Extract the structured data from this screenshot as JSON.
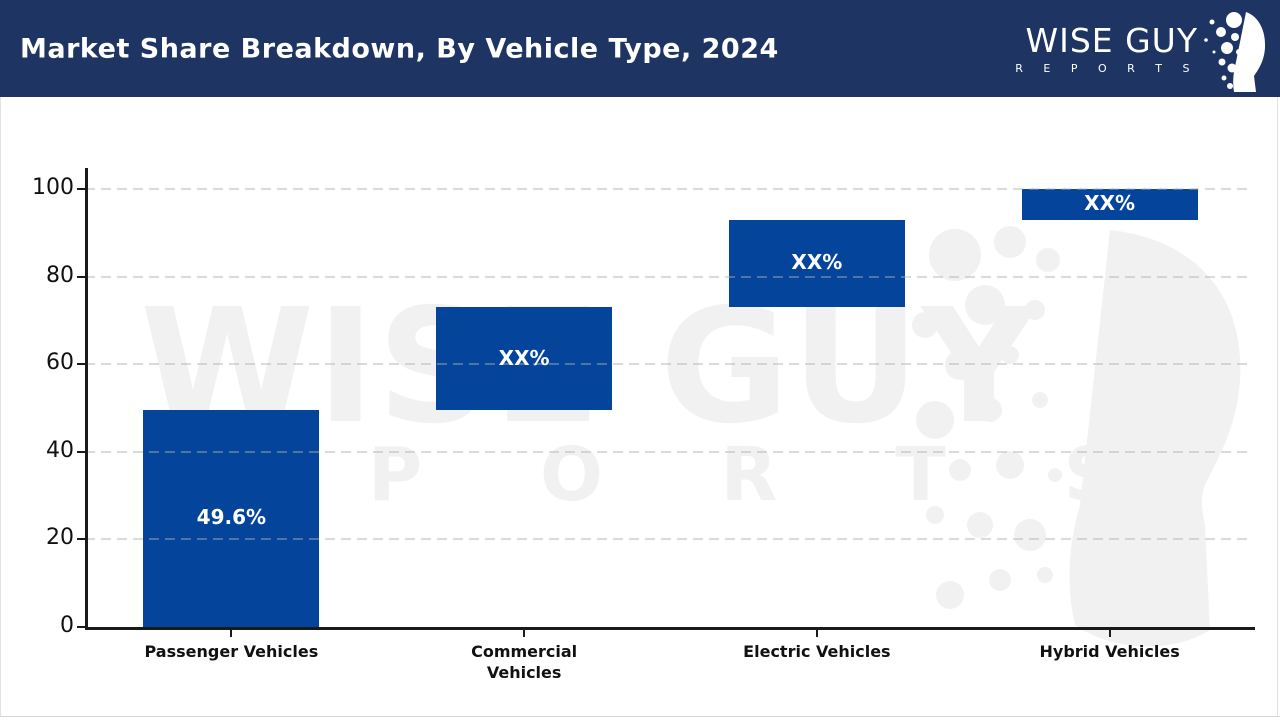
{
  "header": {
    "title": "Market Share Breakdown, By Vehicle Type, 2024",
    "logo": {
      "name": "WISE GUY",
      "subtitle": "R E P O R T S"
    }
  },
  "watermark": {
    "line1": "WISE GUY",
    "line2": "P O R T S"
  },
  "chart_data": {
    "type": "bar",
    "variant": "waterfall",
    "title": "Market Share Breakdown, By Vehicle Type, 2024",
    "categories": [
      "Passenger Vehicles",
      "Commercial Vehicles",
      "Electric Vehicles",
      "Hybrid Vehicles"
    ],
    "category_label_lines": [
      [
        "Passenger Vehicles"
      ],
      [
        "Commercial",
        "Vehicles"
      ],
      [
        "Electric Vehicles"
      ],
      [
        "Hybrid Vehicles"
      ]
    ],
    "bars": [
      {
        "category": "Passenger Vehicles",
        "start": 0,
        "end": 49.6,
        "label": "49.6%"
      },
      {
        "category": "Commercial Vehicles",
        "start": 49.6,
        "end": 73,
        "label": "XX%"
      },
      {
        "category": "Electric Vehicles",
        "start": 73,
        "end": 93,
        "label": "XX%"
      },
      {
        "category": "Hybrid Vehicles",
        "start": 93,
        "end": 100,
        "label": "XX%"
      }
    ],
    "xlabel": "",
    "ylabel": "",
    "ylim": [
      0,
      100
    ],
    "yticks": [
      0,
      20,
      40,
      60,
      80,
      100
    ],
    "grid": true,
    "legend": false,
    "colors": {
      "bar": "#05449b",
      "bar_label": "#ffffff",
      "axis": "#1a1a1a",
      "header_bg": "#1e3462",
      "title_text": "#ffffff",
      "watermark": "#f1f1f1"
    }
  }
}
